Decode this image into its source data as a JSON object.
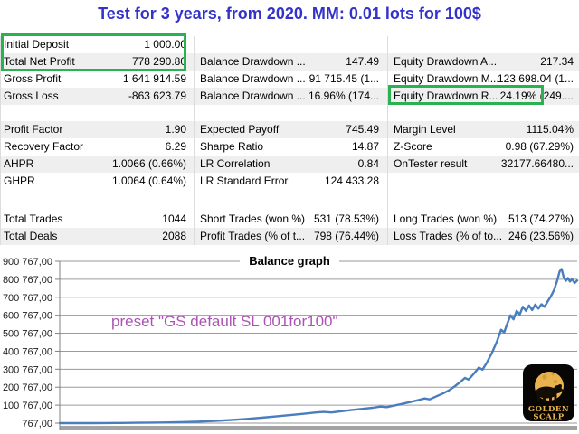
{
  "title": "Test for 3 years, from 2020. MM: 0.01 lots for 100$",
  "stats": {
    "rows": [
      {
        "l1": "Initial Deposit",
        "v1": "1 000.00",
        "l2": "",
        "v2": "",
        "l3": "",
        "v3": ""
      },
      {
        "l1": "Total Net Profit",
        "v1": "778 290.80",
        "l2": "Balance Drawdown ...",
        "v2": "147.49",
        "l3": "Equity Drawdown A...",
        "v3": "217.34"
      },
      {
        "l1": "Gross Profit",
        "v1": "1 641 914.59",
        "l2": "Balance Drawdown ...",
        "v2": "91 715.45 (1...",
        "l3": "Equity Drawdown M...",
        "v3": "123 698.04 (1..."
      },
      {
        "l1": "Gross Loss",
        "v1": "-863 623.79",
        "l2": "Balance Drawdown ...",
        "v2": "16.96% (174...",
        "l3": "Equity Drawdown R...",
        "v3": "24.19% (249...."
      },
      {
        "l1": "Profit Factor",
        "v1": "1.90",
        "l2": "Expected Payoff",
        "v2": "745.49",
        "l3": "Margin Level",
        "v3": "1115.04%"
      },
      {
        "l1": "Recovery Factor",
        "v1": "6.29",
        "l2": "Sharpe Ratio",
        "v2": "14.87",
        "l3": "Z-Score",
        "v3": "0.98 (67.29%)"
      },
      {
        "l1": "AHPR",
        "v1": "1.0066 (0.66%)",
        "l2": "LR Correlation",
        "v2": "0.84",
        "l3": "OnTester result",
        "v3": "32177.66480..."
      },
      {
        "l1": "GHPR",
        "v1": "1.0064 (0.64%)",
        "l2": "LR Standard Error",
        "v2": "124 433.28",
        "l3": "",
        "v3": ""
      },
      {
        "l1": "Total Trades",
        "v1": "1044",
        "l2": "Short Trades (won %)",
        "v2": "531 (78.53%)",
        "l3": "Long Trades (won %)",
        "v3": "513 (74.27%)"
      },
      {
        "l1": "Total Deals",
        "v1": "2088",
        "l2": "Profit Trades (% of t...",
        "v2": "798 (76.44%)",
        "l3": "Loss Trades (% of to...",
        "v3": "246 (23.56%)"
      }
    ]
  },
  "highlight_color": "#2bb052",
  "chart_data": {
    "type": "line",
    "title": "Balance graph",
    "annotation": "preset \"GS default SL 001for100\"",
    "ylim": [
      767,
      900767
    ],
    "y_ticks": [
      "900 767,00",
      "800 767,00",
      "700 767,00",
      "600 767,00",
      "500 767,00",
      "400 767,00",
      "300 767,00",
      "200 767,00",
      "100 767,00",
      "767,00"
    ],
    "grid": "horizontal",
    "legend": "none",
    "line_color": "#4a7dbd",
    "grid_color": "#9a9a9a",
    "axis_color": "#808080",
    "baseline_color": "#a3a3a3",
    "series": [
      {
        "name": "Balance",
        "points": [
          [
            0.0,
            767
          ],
          [
            0.03,
            850
          ],
          [
            0.06,
            1000
          ],
          [
            0.09,
            1400
          ],
          [
            0.12,
            1900
          ],
          [
            0.15,
            2600
          ],
          [
            0.18,
            3600
          ],
          [
            0.21,
            5000
          ],
          [
            0.24,
            7000
          ],
          [
            0.27,
            9500
          ],
          [
            0.3,
            13000
          ],
          [
            0.33,
            18000
          ],
          [
            0.36,
            24000
          ],
          [
            0.39,
            31000
          ],
          [
            0.42,
            39000
          ],
          [
            0.45,
            47000
          ],
          [
            0.475,
            54000
          ],
          [
            0.495,
            60000
          ],
          [
            0.51,
            63000
          ],
          [
            0.525,
            60000
          ],
          [
            0.545,
            67000
          ],
          [
            0.565,
            74000
          ],
          [
            0.585,
            80000
          ],
          [
            0.605,
            86000
          ],
          [
            0.62,
            93000
          ],
          [
            0.632,
            90000
          ],
          [
            0.645,
            98000
          ],
          [
            0.66,
            107000
          ],
          [
            0.675,
            117000
          ],
          [
            0.69,
            127000
          ],
          [
            0.705,
            138000
          ],
          [
            0.715,
            133000
          ],
          [
            0.728,
            150000
          ],
          [
            0.74,
            165000
          ],
          [
            0.752,
            183000
          ],
          [
            0.764,
            207000
          ],
          [
            0.775,
            232000
          ],
          [
            0.783,
            252000
          ],
          [
            0.79,
            243000
          ],
          [
            0.8,
            275000
          ],
          [
            0.81,
            310000
          ],
          [
            0.817,
            298000
          ],
          [
            0.825,
            335000
          ],
          [
            0.835,
            390000
          ],
          [
            0.845,
            455000
          ],
          [
            0.853,
            520000
          ],
          [
            0.859,
            505000
          ],
          [
            0.865,
            555000
          ],
          [
            0.871,
            600000
          ],
          [
            0.877,
            578000
          ],
          [
            0.883,
            625000
          ],
          [
            0.889,
            605000
          ],
          [
            0.895,
            648000
          ],
          [
            0.901,
            625000
          ],
          [
            0.907,
            655000
          ],
          [
            0.913,
            630000
          ],
          [
            0.919,
            660000
          ],
          [
            0.925,
            638000
          ],
          [
            0.931,
            662000
          ],
          [
            0.937,
            648000
          ],
          [
            0.943,
            678000
          ],
          [
            0.949,
            705000
          ],
          [
            0.955,
            740000
          ],
          [
            0.961,
            790000
          ],
          [
            0.966,
            845000
          ],
          [
            0.97,
            858000
          ],
          [
            0.974,
            812000
          ],
          [
            0.978,
            792000
          ],
          [
            0.982,
            808000
          ],
          [
            0.986,
            788000
          ],
          [
            0.99,
            802000
          ],
          [
            0.995,
            780000
          ],
          [
            1.0,
            794000
          ]
        ]
      }
    ]
  },
  "logo": {
    "line1": "GOLDEN",
    "line2": "SCALP"
  }
}
